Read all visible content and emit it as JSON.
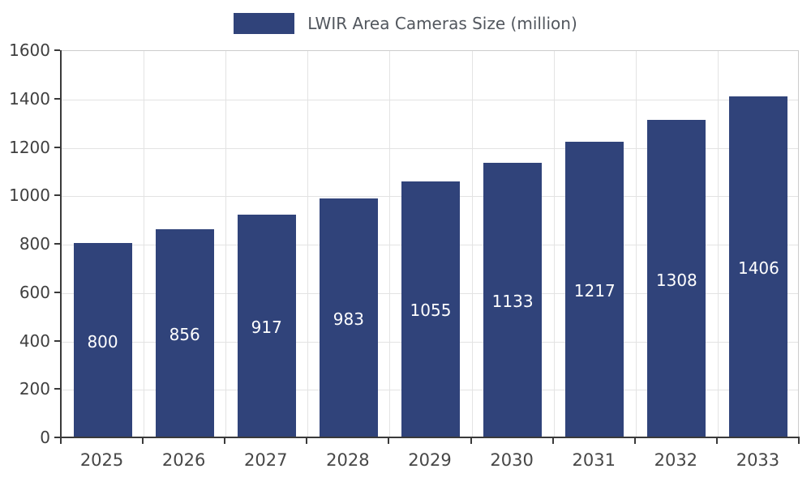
{
  "chart_data": {
    "type": "bar",
    "legend": "LWIR Area Cameras Size (million)",
    "categories": [
      "2025",
      "2026",
      "2027",
      "2028",
      "2029",
      "2030",
      "2031",
      "2032",
      "2033"
    ],
    "values": [
      800,
      856,
      917,
      983,
      1055,
      1133,
      1217,
      1308,
      1406
    ],
    "title": "",
    "xlabel": "",
    "ylabel": "",
    "ylim": [
      0,
      1600
    ],
    "yticks": [
      0,
      200,
      400,
      600,
      800,
      1000,
      1200,
      1400,
      1600
    ],
    "grid": true,
    "legend_position": "top",
    "bar_color": "#30437a",
    "bar_label_color": "#ffffff",
    "axis_color": "#3a3a3a",
    "grid_color": "#e3e3e3"
  }
}
